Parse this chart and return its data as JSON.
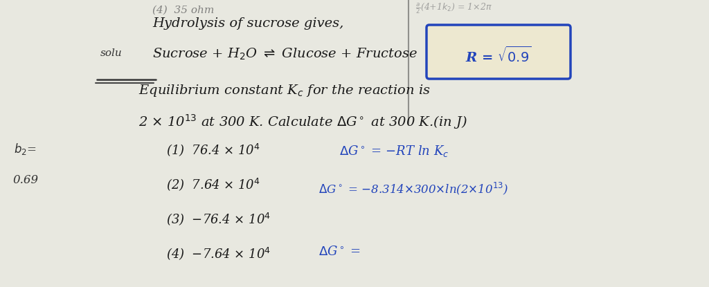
{
  "background_color": "#e8e8e0",
  "page_color": "#f5f5ee",
  "text_color": "#1a1a1a",
  "blue_color": "#2244bb",
  "box_edge_color": "#2244bb",
  "title_line": "Hydrolysis of sucrose gives,",
  "reaction_line": "Sucrose + H$_2$O $\\rightleftharpoons$ Glucose + Fructose",
  "equilibrium_line": "Equilibrium constant K$_c$ for the reaction is",
  "value_line": "2 $\\times$ 10$^{13}$ at 300 K. Calculate $\\Delta$G$^\\circ$ at 300 K.(in J)",
  "opt1": "(1)  76.4 $\\times$ 10$^4$",
  "opt2": "(2)  7.64 $\\times$ 10$^4$",
  "opt3": "(3)  $-$76.4 $\\times$ 10$^4$",
  "opt4": "(4)  $-$7.64 $\\times$ 10$^4$",
  "box_label": "R = $\\sqrt{0.9}$",
  "hw1": "$\\Delta$G$^\\circ$ = $-$RT ln K$_c$",
  "hw2": "$\\Delta$G$^\\circ$ = $-$8.314$\\times$300$\\times$ln(2$\\times$10$^{13}$)",
  "hw3": "$\\Delta$G$^\\circ$ =",
  "left1": "$b_2$ =",
  "left2": "0.69",
  "top_partial": "(4)  35 ohm",
  "top_right_partial": "$\\frac{a}{2}$(4+1k$_2$) = 1$\\times$2$\\pi$",
  "solu_text": "solu"
}
